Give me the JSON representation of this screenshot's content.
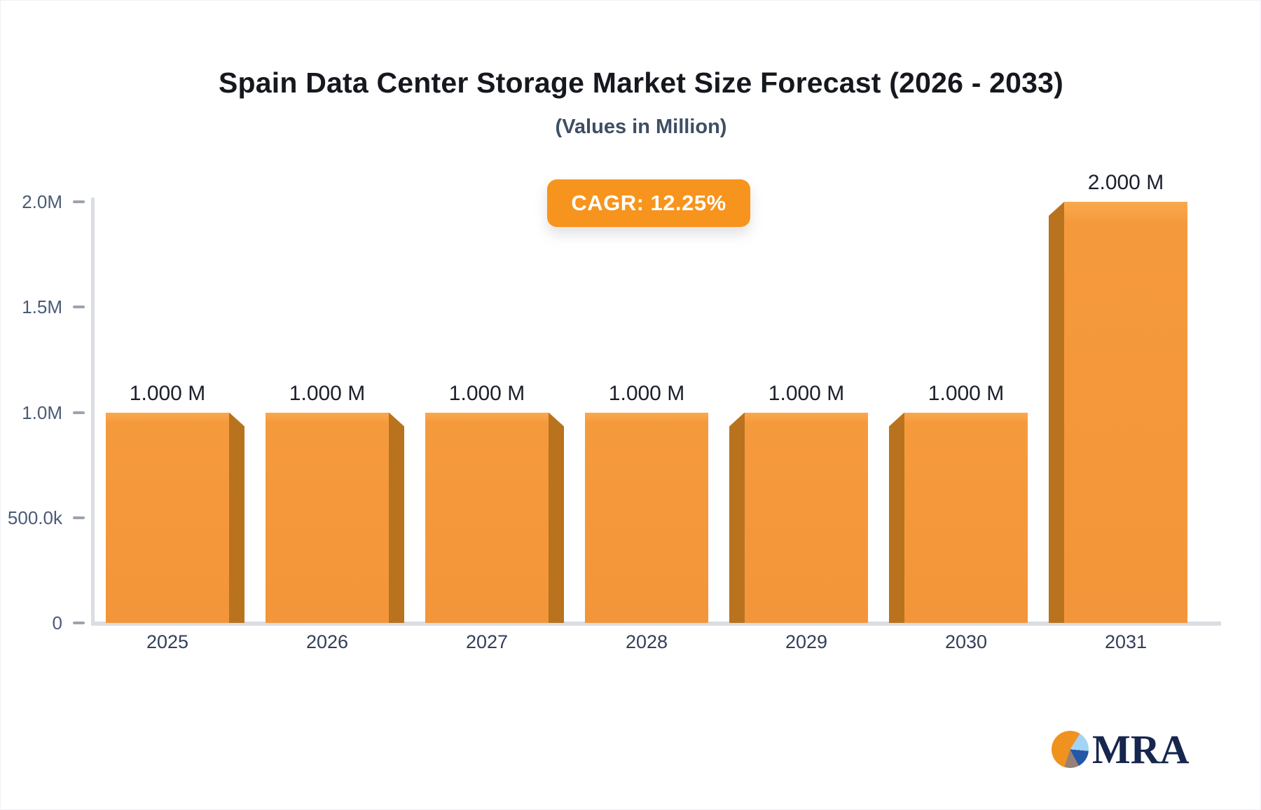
{
  "header": {
    "title": "Spain Data Center Storage Market Size Forecast (2026 - 2033)",
    "subtitle": "(Values in Million)",
    "badge": "CAGR: 12.25%"
  },
  "chart_data": {
    "type": "bar",
    "title": "Spain Data Center Storage Market Size Forecast (2026 - 2033)",
    "subtitle": "(Values in Million)",
    "annotation": "CAGR: 12.25%",
    "categories": [
      "2025",
      "2026",
      "2027",
      "2028",
      "2029",
      "2030",
      "2031"
    ],
    "values": [
      1000000,
      1000000,
      1000000,
      1000000,
      1000000,
      1000000,
      2000000
    ],
    "value_labels": [
      "1.000 M",
      "1.000 M",
      "1.000 M",
      "1.000 M",
      "1.000 M",
      "1.000 M",
      "2.000 M"
    ],
    "xlabel": "",
    "ylabel": "",
    "ylim": [
      0,
      2000000
    ],
    "yticks": [
      {
        "label": "2.0M",
        "value": 2000000
      },
      {
        "label": "1.5M",
        "value": 1500000
      },
      {
        "label": "1.0M",
        "value": 1000000
      },
      {
        "label": "500.0k",
        "value": 500000
      },
      {
        "label": "0",
        "value": 0
      }
    ],
    "grid": false,
    "legend": null,
    "colors": {
      "bar": "#F59A3C",
      "bar_side": "#B9731E",
      "badge": "#F7941D",
      "axis_line": "#DADDE2",
      "tick": "#9CA3B0",
      "ytick_text": "#4A5B77",
      "xtick_text": "#333F58",
      "value_text": "#1B202B"
    }
  },
  "logo": {
    "text": "MRA",
    "pie_colors": {
      "orange": "#F0921E",
      "light_blue": "#A3D4F5",
      "dark_blue": "#2457A7",
      "gray": "#988078"
    }
  }
}
